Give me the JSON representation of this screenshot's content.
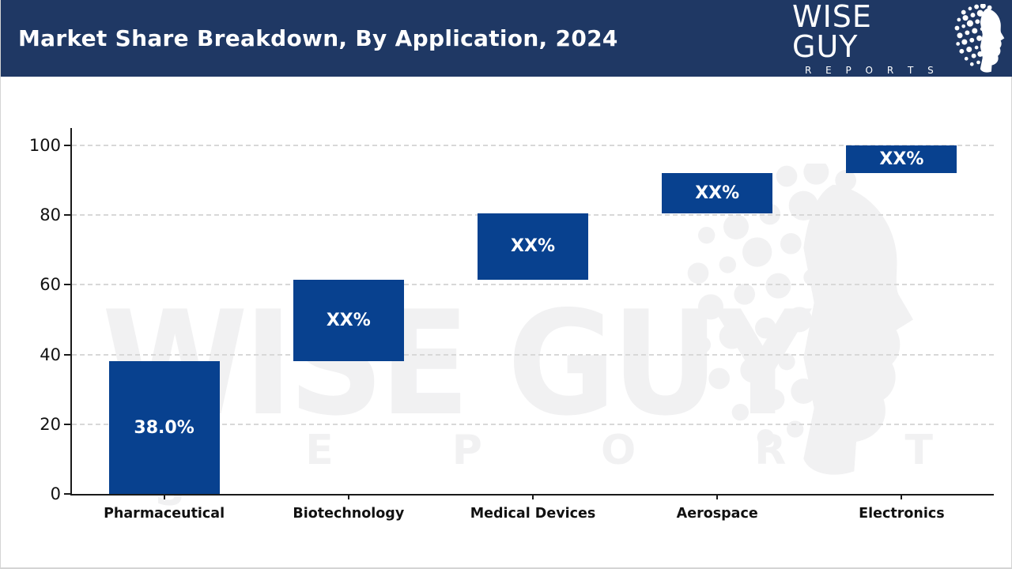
{
  "header": {
    "title": "Market Share Breakdown, By Application, 2024",
    "logo": {
      "wordmark": "WISE GUY",
      "subtext": "R E P O R T S"
    }
  },
  "watermark": {
    "wordmark": "WISE GUY",
    "subtext": "R E P O R T S"
  },
  "chart_data": {
    "type": "bar",
    "subtype": "waterfall-floating-bars",
    "title": "Market Share Breakdown, By Application, 2024",
    "categories": [
      "Pharmaceutical",
      "Biotechnology",
      "Medical Devices",
      "Aerospace",
      "Electronics"
    ],
    "values": [
      38.0,
      23.5,
      19.0,
      11.5,
      8.0
    ],
    "segments": [
      {
        "category": "Pharmaceutical",
        "start": 0,
        "end": 38,
        "label": "38.0%"
      },
      {
        "category": "Biotechnology",
        "start": 38,
        "end": 61.5,
        "label": "XX%"
      },
      {
        "category": "Medical Devices",
        "start": 61.5,
        "end": 80.5,
        "label": "XX%"
      },
      {
        "category": "Aerospace",
        "start": 80.5,
        "end": 92,
        "label": "XX%"
      },
      {
        "category": "Electronics",
        "start": 92,
        "end": 100,
        "label": "XX%"
      }
    ],
    "xlabel": "",
    "ylabel": "",
    "y_ticks": [
      0,
      20,
      40,
      60,
      80,
      100
    ],
    "ylim": [
      0,
      105
    ],
    "grid": "horizontal-dashed",
    "legend": "none"
  },
  "colors": {
    "header_bg": "#1f3864",
    "bar": "#08418f",
    "grid": "#d8d8d8",
    "axis": "#1a1a1a",
    "watermark": "#f1f1f2",
    "border": "#d4d4d4"
  }
}
